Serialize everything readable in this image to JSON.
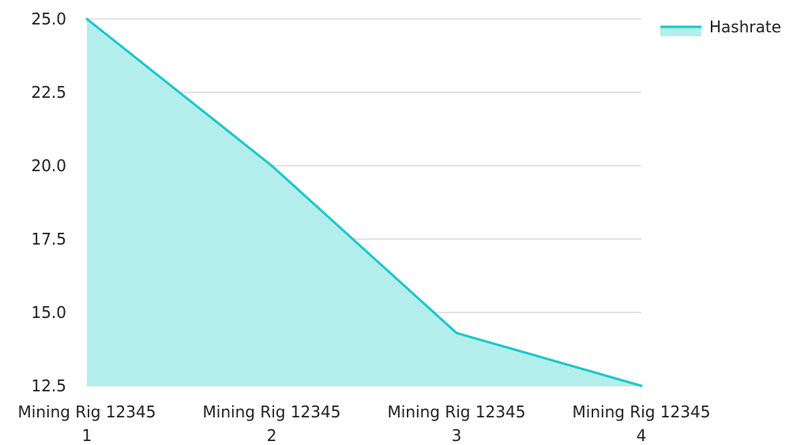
{
  "chart_data": {
    "type": "area",
    "title": "",
    "xlabel": "",
    "ylabel": "",
    "categories": [
      [
        "Mining Rig 12345",
        "1"
      ],
      [
        "Mining Rig 12345",
        "2"
      ],
      [
        "Mining Rig 12345",
        "3"
      ],
      [
        "Mining Rig 12345",
        "4"
      ]
    ],
    "series": [
      {
        "name": "Hashrate",
        "values": [
          25.0,
          20.0,
          14.3,
          12.5
        ],
        "line_color": "#1ac8c8",
        "fill_color": "#b3eeec"
      }
    ],
    "ylim": [
      12.5,
      25.0
    ],
    "y_ticks": [
      "12.5",
      "15.0",
      "17.5",
      "20.0",
      "22.5",
      "25.0"
    ],
    "grid": true,
    "grid_color": "#c8c8c8",
    "legend_position": "top-right"
  }
}
